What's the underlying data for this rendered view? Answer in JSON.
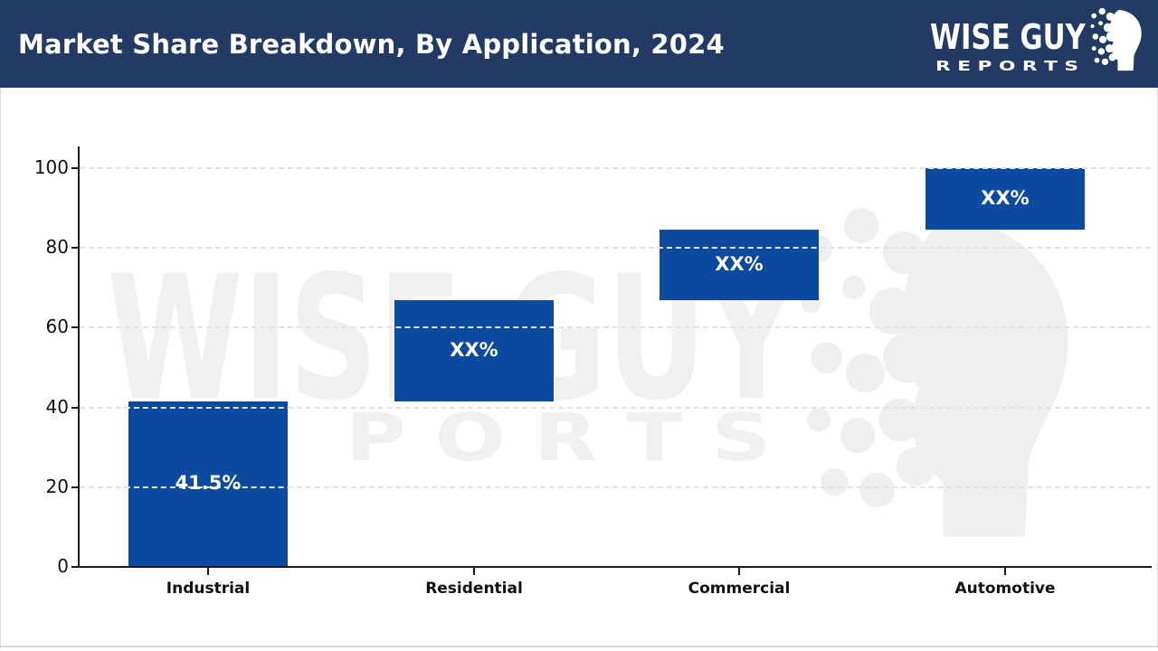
{
  "header": {
    "title": "Market Share Breakdown, By Application, 2024",
    "logo": {
      "line1": "WISE GUY",
      "line2": "R E P O R T S"
    }
  },
  "watermark": {
    "line1": "WISE GUY",
    "line2": "P O R T S"
  },
  "colors": {
    "header_bg": "#223a64",
    "bar": "#0b4a9e",
    "gridline": "#e2e2e2",
    "axis_text": "#111111",
    "watermark": "#f0f0f0"
  },
  "chart_data": {
    "type": "bar",
    "subtype": "waterfall",
    "title": "Market Share Breakdown, By Application, 2024",
    "categories": [
      "Industrial",
      "Residential",
      "Commercial",
      "Automotive"
    ],
    "segments": [
      {
        "category": "Industrial",
        "start": 0,
        "end": 41.5,
        "label": "41.5%"
      },
      {
        "category": "Residential",
        "start": 41.5,
        "end": 67,
        "label": "XX%"
      },
      {
        "category": "Commercial",
        "start": 67,
        "end": 84.5,
        "label": "XX%"
      },
      {
        "category": "Automotive",
        "start": 84.5,
        "end": 100,
        "label": "XX%"
      }
    ],
    "y_ticks": [
      0,
      20,
      40,
      60,
      80,
      100
    ],
    "ylim": [
      0,
      100
    ],
    "grid": "horizontal-dashed-above-bars",
    "legend": "none",
    "bar_color": "#0b4a9e"
  }
}
